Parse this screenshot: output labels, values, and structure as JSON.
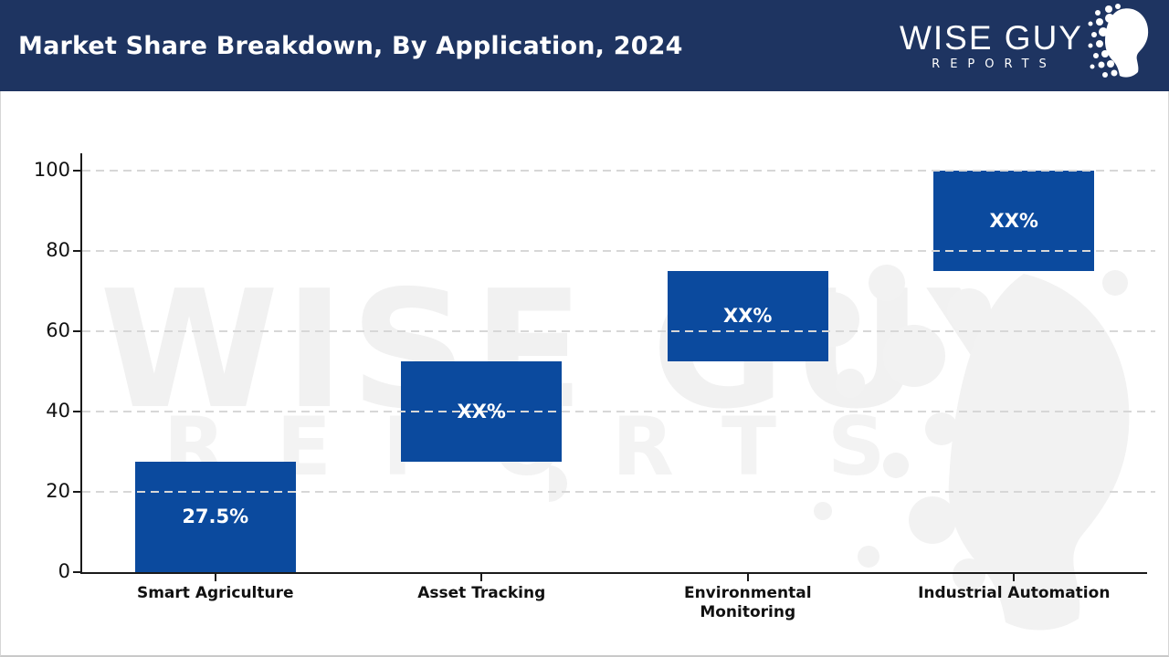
{
  "header": {
    "title": "Market Share Breakdown, By Application, 2024",
    "logo": {
      "line1": "WISE GUY",
      "line2": "REPORTS"
    }
  },
  "watermark": {
    "line1": "WISE GUY",
    "line2": "REPORTS"
  },
  "chart_data": {
    "type": "bar",
    "subtype": "waterfall",
    "title": "Market Share Breakdown, By Application, 2024",
    "categories": [
      "Smart Agriculture",
      "Asset Tracking",
      "Environmental Monitoring",
      "Industrial Automation"
    ],
    "series": [
      {
        "name": "Market Share (%)",
        "starts": [
          0,
          27.5,
          52.5,
          75
        ],
        "values": [
          27.5,
          25,
          22.5,
          25
        ],
        "bar_labels": [
          "27.5%",
          "XX%",
          "XX%",
          "XX%"
        ]
      }
    ],
    "xlabel": "",
    "ylabel": "",
    "ylim": [
      0,
      100
    ],
    "yticks": [
      0,
      20,
      40,
      60,
      80,
      100
    ],
    "grid": "horizontal-dashed",
    "legend": "none"
  },
  "colors": {
    "header_bg": "#1e3461",
    "bar": "#0b4a9e",
    "bar_label": "#ffffff",
    "grid": "#d7d7d7",
    "axis": "#1a1a1a",
    "watermark": "#f1f1f1"
  }
}
